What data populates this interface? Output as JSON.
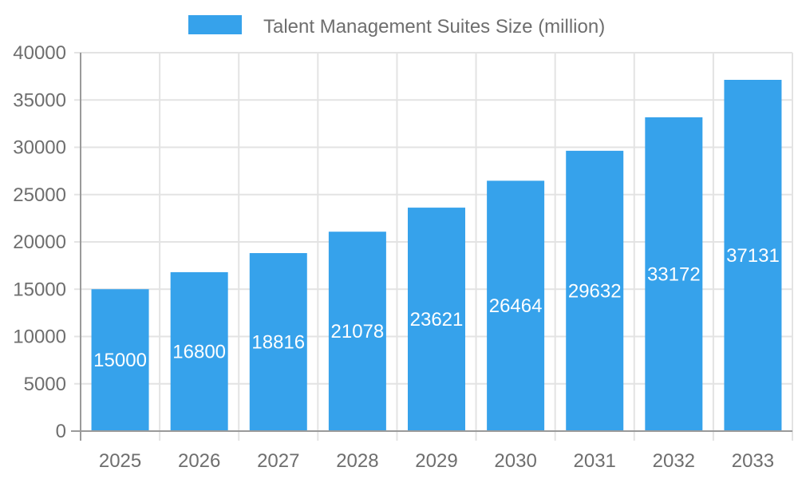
{
  "legend": {
    "label": "Talent Management Suites Size (million)"
  },
  "chart_data": {
    "type": "bar",
    "title": "Talent Management Suites Size (million)",
    "series_name": "Talent Management Suites Size (million)",
    "categories": [
      "2025",
      "2026",
      "2027",
      "2028",
      "2029",
      "2030",
      "2031",
      "2032",
      "2033"
    ],
    "values": [
      15000,
      16800,
      18816,
      21078,
      23621,
      26464,
      29632,
      33172,
      37131
    ],
    "yticks": [
      0,
      5000,
      10000,
      15000,
      20000,
      25000,
      30000,
      35000,
      40000
    ],
    "ylim": [
      0,
      40000
    ],
    "xlabel": "",
    "ylabel": "",
    "grid": true,
    "bar_label_position": "center-inside",
    "legend_position": "top-center",
    "colors": {
      "bar": "#36A2EB",
      "bar_label": "#FFFFFF",
      "axis": "#9A9A9A",
      "grid": "#E3E3E3",
      "tick_label": "#6E6E6E",
      "legend_label": "#6E6E6E",
      "background": "#FFFFFF"
    }
  }
}
